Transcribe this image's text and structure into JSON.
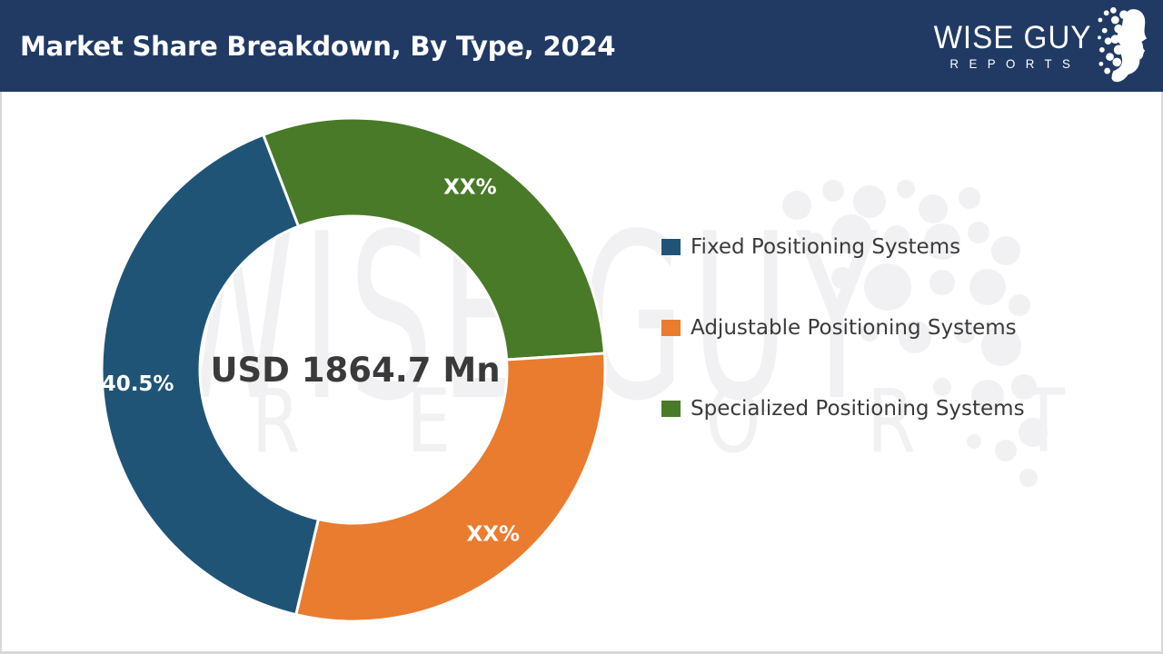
{
  "header": {
    "title": "Market Share Breakdown, By Type, 2024",
    "bg_color": "#213a64",
    "logo": {
      "line1": "WISE GUY",
      "line2": "REPORTS"
    }
  },
  "chart_data": {
    "type": "pie",
    "subtype": "donut",
    "title": "Market Share Breakdown, By Type, 2024",
    "center_label": "USD 1864.7 Mn",
    "rotation_deg": -21,
    "direction": "clockwise",
    "inner_radius_ratio": 0.61,
    "slices": [
      {
        "name": "Specialized Positioning Systems",
        "value_pct": 29.8,
        "label": "XX%",
        "color": "#487a28"
      },
      {
        "name": "Adjustable Positioning Systems",
        "value_pct": 29.7,
        "label": "XX%",
        "color": "#e97c2f"
      },
      {
        "name": "Fixed Positioning Systems",
        "value_pct": 40.5,
        "label": "40.5%",
        "color": "#205476"
      }
    ],
    "legend_position": "right"
  },
  "legend": {
    "items": [
      {
        "label": "Fixed Positioning Systems",
        "color": "#205476"
      },
      {
        "label": "Adjustable Positioning Systems",
        "color": "#e97c2f"
      },
      {
        "label": "Specialized Positioning Systems",
        "color": "#487a28"
      }
    ]
  },
  "watermark": {
    "line1": "WISE GUY",
    "line2": "R E P O R T S"
  }
}
